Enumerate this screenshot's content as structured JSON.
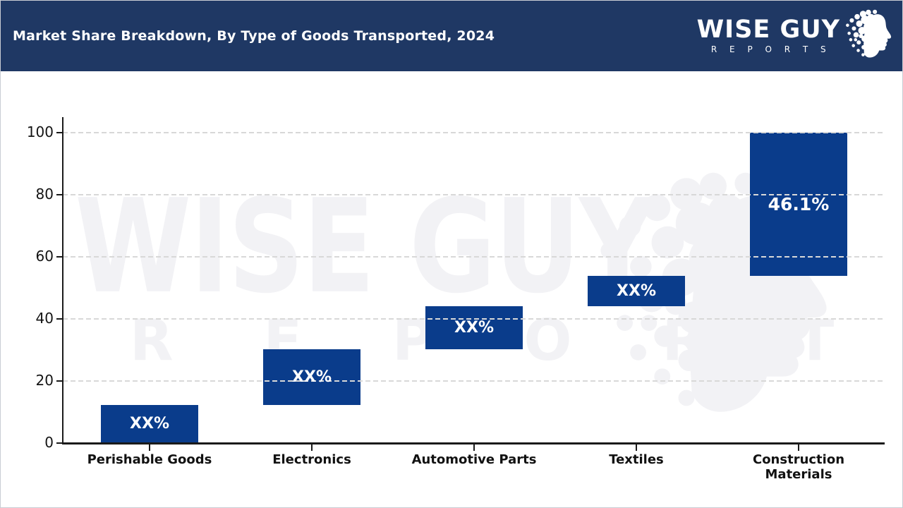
{
  "header": {
    "title": "Market Share Breakdown, By Type of Goods Transported, 2024",
    "logo": {
      "line1": "WISE GUY",
      "line2": "REPORTS",
      "icon": "dotted-face-profile-icon"
    }
  },
  "watermark": {
    "line1": "WISE GUY",
    "line2": "R E P O R T S",
    "icon": "dotted-face-profile-icon"
  },
  "colors": {
    "header_bg": "#1f3864",
    "bar_blue": "#0a3c8b",
    "gridline": "#d8d8d8",
    "axis": "#1a1a1a",
    "bar_label_text": "#ffffff",
    "tick_text": "#141414",
    "watermark": "#f2f2f5",
    "logo_white": "#ffffff"
  },
  "chart_data": {
    "type": "bar",
    "subtype": "waterfall",
    "title": "Market Share Breakdown, By Type of Goods Transported, 2024",
    "xlabel": "",
    "ylabel": "",
    "categories": [
      "Perishable Goods",
      "Electronics",
      "Automotive Parts",
      "Textiles",
      "Construction Materials"
    ],
    "bar_starts": [
      0,
      12.3,
      30.2,
      44.1,
      53.9
    ],
    "bar_values": [
      12.3,
      17.9,
      13.9,
      9.8,
      46.1
    ],
    "bar_labels": [
      "XX%",
      "XX%",
      "XX%",
      "XX%",
      "46.1%"
    ],
    "yticks": [
      0,
      20,
      40,
      60,
      80,
      100
    ],
    "ylim": [
      0,
      105
    ],
    "grid": "horizontal-dashed",
    "legend": "none"
  }
}
